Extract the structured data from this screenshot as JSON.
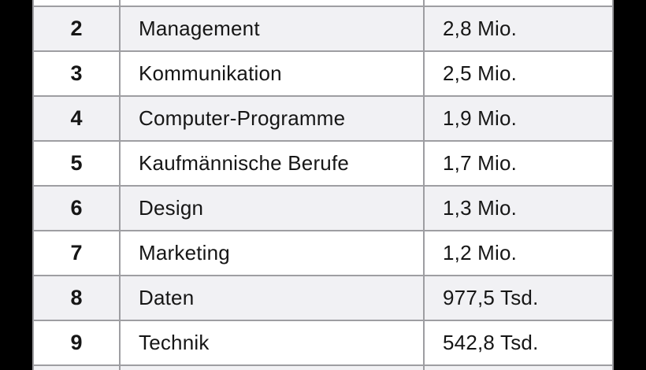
{
  "table": {
    "rows": [
      {
        "rank": "2",
        "category": "Management",
        "value": "2,8 Mio."
      },
      {
        "rank": "3",
        "category": "Kommunikation",
        "value": "2,5 Mio."
      },
      {
        "rank": "4",
        "category": "Computer-Programme",
        "value": "1,9 Mio."
      },
      {
        "rank": "5",
        "category": "Kaufmännische Berufe",
        "value": "1,7 Mio."
      },
      {
        "rank": "6",
        "category": "Design",
        "value": "1,3 Mio."
      },
      {
        "rank": "7",
        "category": "Marketing",
        "value": "1,2 Mio."
      },
      {
        "rank": "8",
        "category": "Daten",
        "value": "977,5 Tsd."
      },
      {
        "rank": "9",
        "category": "Technik",
        "value": "542,8 Tsd."
      }
    ]
  },
  "colors": {
    "letterbox": "#000000",
    "row_base": "#ffffff",
    "row_alt": "#f1f1f4",
    "border": "#9e9ea2",
    "text": "#161616"
  },
  "chart_data": {
    "type": "table",
    "title": "",
    "categories": [
      "Management",
      "Kommunikation",
      "Computer-Programme",
      "Kaufmännische Berufe",
      "Design",
      "Marketing",
      "Daten",
      "Technik"
    ],
    "ranks": [
      2,
      3,
      4,
      5,
      6,
      7,
      8,
      9
    ],
    "value_labels": [
      "2,8 Mio.",
      "2,5 Mio.",
      "1,9 Mio.",
      "1,7 Mio.",
      "1,3 Mio.",
      "1,2 Mio.",
      "977,5 Tsd.",
      "542,8 Tsd."
    ],
    "values_numeric": [
      2800000,
      2500000,
      1900000,
      1700000,
      1300000,
      1200000,
      977500,
      542800
    ]
  }
}
